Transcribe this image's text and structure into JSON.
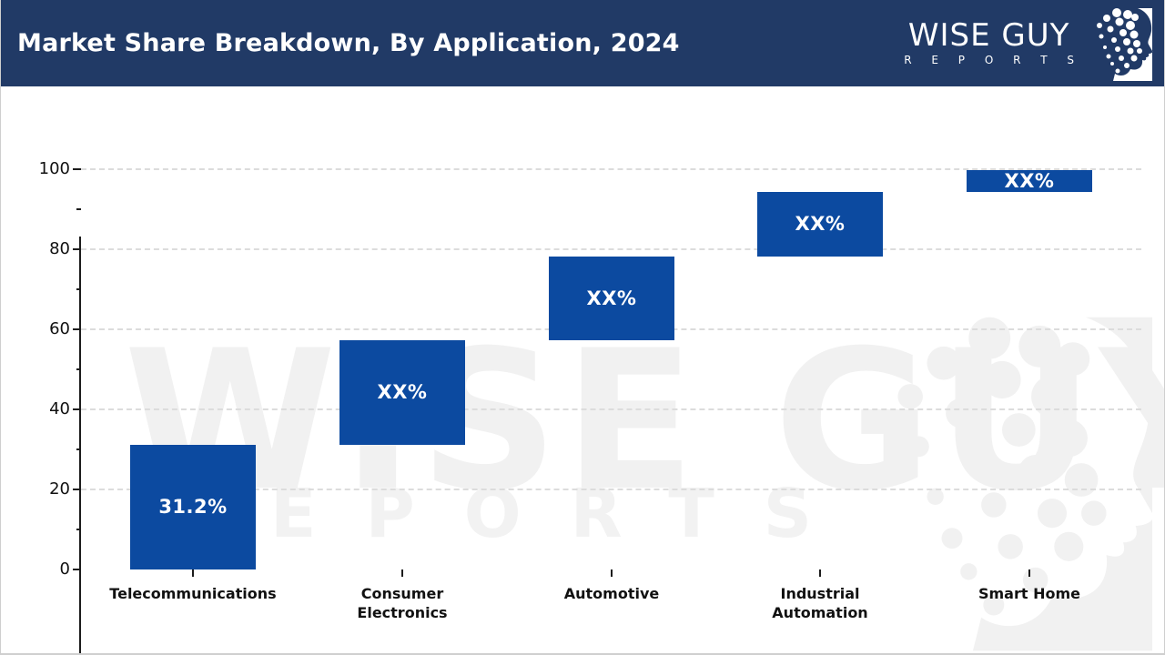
{
  "header": {
    "title": "Market Share Breakdown, By Application, 2024",
    "logo": {
      "line1": "WISE GUY",
      "line2": "R E P O R T S",
      "head_icon": "dotted-face-profile"
    },
    "bg_color": "#213a66"
  },
  "watermark": {
    "line1": "WISE GUY",
    "line2": "REPORTS",
    "head_icon": "dotted-face-profile",
    "color": "#f1f1f1"
  },
  "chart_data": {
    "type": "bar",
    "variant": "waterfall",
    "title": "Market Share Breakdown, By Application, 2024",
    "categories": [
      "Telecommunications",
      "Consumer Electronics",
      "Automotive",
      "Industrial Automation",
      "Smart Home"
    ],
    "category_label_lines": [
      [
        "Telecommunications"
      ],
      [
        "Consumer",
        "Electronics"
      ],
      [
        "Automotive"
      ],
      [
        "Industrial",
        "Automation"
      ],
      [
        "Smart Home"
      ]
    ],
    "segments": [
      {
        "category": "Telecommunications",
        "start": 0,
        "end": 31.2,
        "label": "31.2%"
      },
      {
        "category": "Consumer Electronics",
        "start": 31.2,
        "end": 57.3,
        "label": "XX%"
      },
      {
        "category": "Automotive",
        "start": 57.3,
        "end": 78.1,
        "label": "XX%"
      },
      {
        "category": "Industrial Automation",
        "start": 78.1,
        "end": 94.4,
        "label": "XX%"
      },
      {
        "category": "Smart Home",
        "start": 94.4,
        "end": 99.8,
        "label": "XX%"
      }
    ],
    "xlabel": "",
    "ylabel": "",
    "yticks": [
      0,
      20,
      40,
      60,
      80,
      100
    ],
    "minor_yticks": [
      10,
      30,
      50,
      70,
      90
    ],
    "ylim": [
      0,
      105
    ],
    "grid": "horizontal dashed",
    "legend": "none",
    "bar_color": "#0c4aa0",
    "bar_label_color": "#ffffff",
    "axis_color": "#1c1c1c",
    "grid_color": "#dcdcdc"
  }
}
